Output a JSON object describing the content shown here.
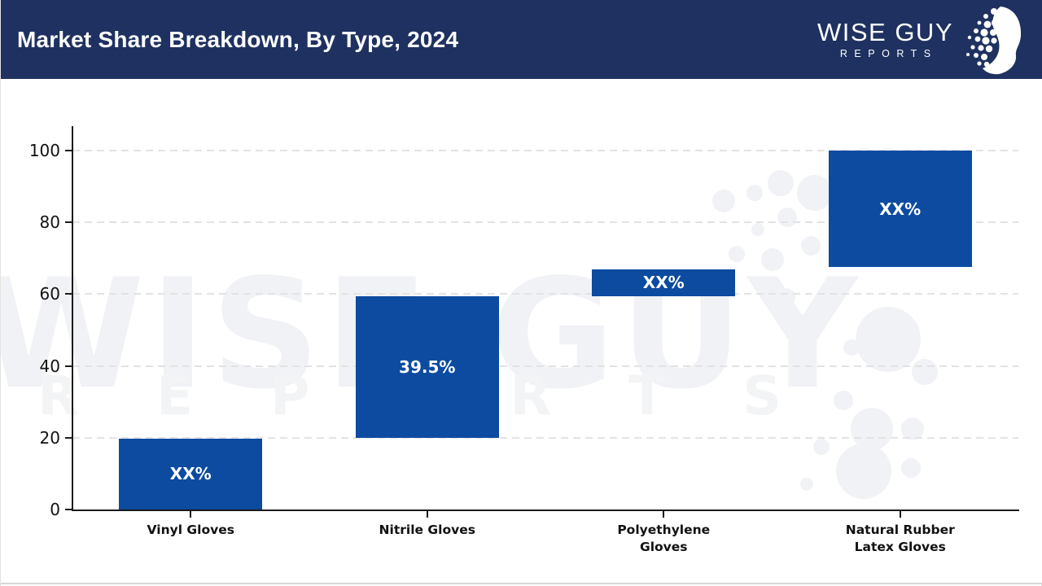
{
  "header": {
    "title": "Market Share Breakdown, By Type, 2024",
    "bg_color": "#1e3160",
    "logo": {
      "line1": "WISE GUY",
      "line2": "REPORTS"
    }
  },
  "watermark": {
    "line1": "WISE GUY",
    "line2": "R E P O R T S"
  },
  "chart_data": {
    "type": "bar",
    "subtype": "waterfall",
    "title": "Market Share Breakdown, By Type, 2024",
    "xlabel": "",
    "ylabel": "",
    "ylim": [
      0,
      105
    ],
    "yticks": [
      0,
      20,
      40,
      60,
      80,
      100
    ],
    "grid": "horizontal-dashed",
    "legend": "none",
    "bar_color": "#0c4ba0",
    "bar_label_color": "#ffffff",
    "categories": [
      "Vinyl Gloves",
      "Nitrile Gloves",
      "Polyethylene Gloves",
      "Natural Rubber Latex Gloves"
    ],
    "category_label_lines": [
      [
        "Vinyl Gloves"
      ],
      [
        "Nitrile Gloves"
      ],
      [
        "Polyethylene",
        "Gloves"
      ],
      [
        "Natural Rubber",
        "Latex Gloves"
      ]
    ],
    "segments": [
      {
        "category": "Vinyl Gloves",
        "start": 0,
        "end": 19.8,
        "label": "XX%"
      },
      {
        "category": "Nitrile Gloves",
        "start": 20,
        "end": 59.5,
        "label": "39.5%"
      },
      {
        "category": "Polyethylene Gloves",
        "start": 59.5,
        "end": 67,
        "label": "XX%"
      },
      {
        "category": "Natural Rubber Latex Gloves",
        "start": 67.5,
        "end": 100,
        "label": "XX%"
      }
    ]
  }
}
